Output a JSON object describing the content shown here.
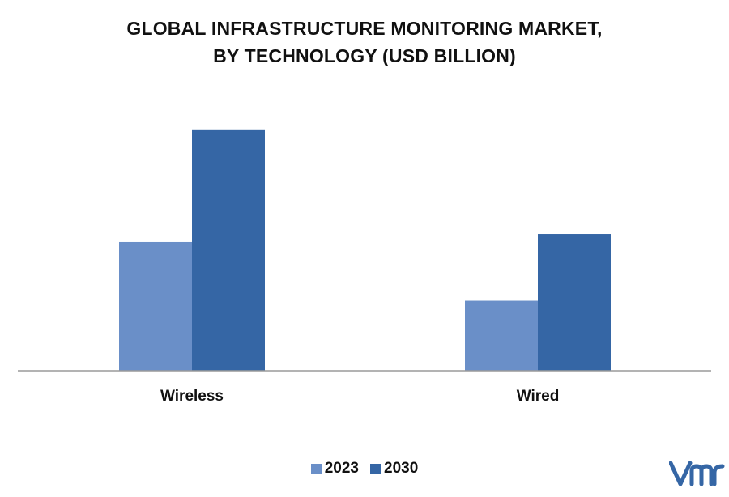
{
  "chart_data": {
    "type": "bar",
    "title_lines": [
      "GLOBAL INFRASTRUCTURE MONITORING MARKET,",
      "BY TECHNOLOGY (USD BILLION)"
    ],
    "categories": [
      "Wireless",
      "Wired"
    ],
    "series": [
      {
        "name": "2023",
        "color": "#6a8fc8",
        "values": [
          1.6,
          0.87
        ]
      },
      {
        "name": "2030",
        "color": "#3566a5",
        "values": [
          3.0,
          1.7
        ]
      }
    ],
    "ylim": [
      0,
      3.3
    ],
    "axis_gridlines": false,
    "value_labels": false,
    "legend_position": "bottom-center"
  },
  "branding": {
    "logo_icon": "vmr-logo-icon",
    "logo_color": "#3566a5"
  }
}
